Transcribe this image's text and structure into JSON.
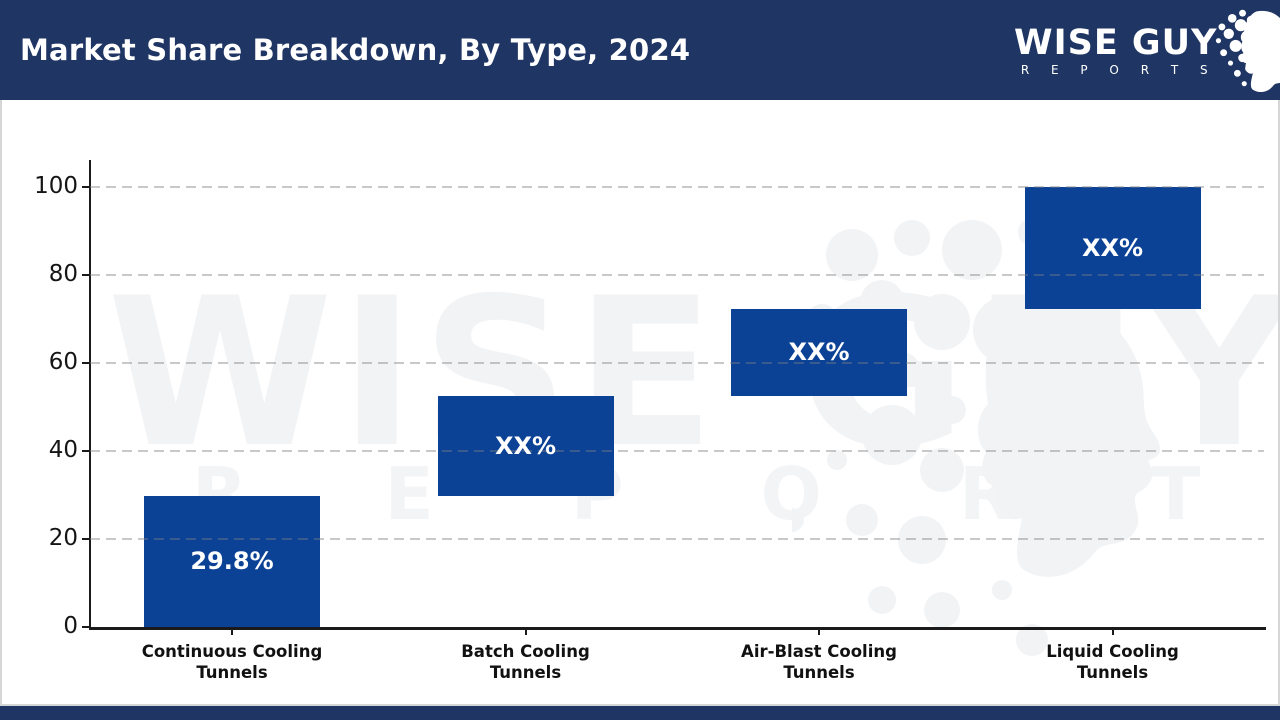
{
  "header": {
    "title": "Market Share Breakdown, By Type, 2024",
    "logo": {
      "name_top": "WISE GUY",
      "name_bottom": "R E P O R T S"
    }
  },
  "watermark": {
    "text_top": "WISE GUY",
    "text_bottom": "R E P O R T S"
  },
  "chart_data": {
    "type": "bar",
    "subtype": "waterfall",
    "title": "Market Share Breakdown, By Type, 2024",
    "categories": [
      "Continuous Cooling Tunnels",
      "Batch Cooling Tunnels",
      "Air-Blast Cooling Tunnels",
      "Liquid Cooling Tunnels"
    ],
    "segments": [
      {
        "category": "Continuous Cooling Tunnels",
        "label": "29.8%",
        "start": 0,
        "end": 29.8,
        "value": 29.8
      },
      {
        "category": "Batch Cooling Tunnels",
        "label": "XX%",
        "start": 29.8,
        "end": 52.5,
        "value": 22.7
      },
      {
        "category": "Air-Blast Cooling Tunnels",
        "label": "XX%",
        "start": 52.5,
        "end": 72.3,
        "value": 19.8
      },
      {
        "category": "Liquid Cooling Tunnels",
        "label": "XX%",
        "start": 72.3,
        "end": 100.0,
        "value": 27.7
      }
    ],
    "xlabel": "",
    "ylabel": "",
    "yticks": [
      0,
      20,
      40,
      60,
      80,
      100
    ],
    "ylim": [
      0,
      105
    ],
    "grid": true,
    "grid_style": "dashed",
    "legend": false
  },
  "colors": {
    "header_bg": "#1f3564",
    "footer_bg": "#1f3564",
    "bar": "#0b4296",
    "bar_label": "#ffffff",
    "gridline": "#c9c9c9",
    "axis": "#1a1a1a",
    "watermark": "#f2f3f5"
  }
}
